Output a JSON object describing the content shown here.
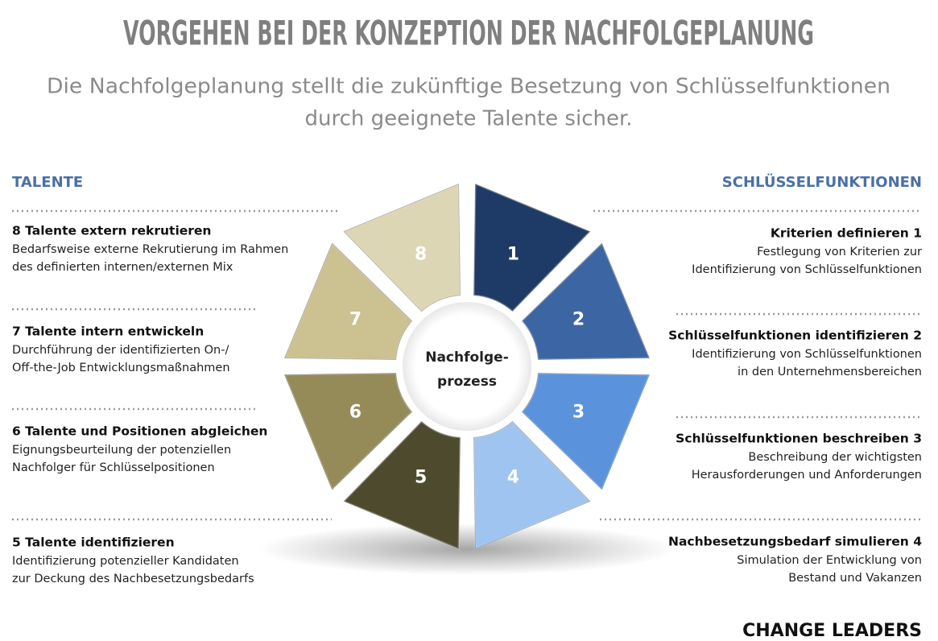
{
  "header": {
    "title": "VORGEHEN BEI DER KONZEPTION DER NACHFOLGEPLANUNG",
    "subtitle_lines": [
      "Die Nachfolgeplanung stellt die zukünftige Besetzung von Schlüsselfunktionen",
      "durch geeignete Talente sicher."
    ]
  },
  "left": {
    "heading": "TALENTE",
    "items": [
      {
        "title": "8 Talente extern rekrutieren",
        "lines": [
          "Bedarfsweise externe Rekrutierung im Rahmen",
          "des definierten internen/externen Mix"
        ]
      },
      {
        "title": "7  Talente intern entwickeln",
        "lines": [
          "Durchführung der identifizierten On-/",
          "Off-the-Job Entwicklungsmaßnahmen"
        ]
      },
      {
        "title": "6  Talente und Positionen abgleichen",
        "lines": [
          "Eignungsbeurteilung der potenziellen",
          "Nachfolger für Schlüsselpositionen"
        ]
      },
      {
        "title": "5  Talente identifizieren",
        "lines": [
          "Identifizierung potenzieller Kandidaten",
          "zur Deckung des Nachbesetzungsbedarfs"
        ]
      }
    ]
  },
  "right": {
    "heading": "SCHLÜSSELFUNKTIONEN",
    "items": [
      {
        "title": "Kriterien definieren  1",
        "lines": [
          "Festlegung von Kriterien zur",
          "Identifizierung von Schlüsselfunktionen"
        ]
      },
      {
        "title": "Schlüsselfunktionen identifizieren 2",
        "lines": [
          "Identifizierung von Schlüsselfunktionen",
          "in den Unternehmensbereichen"
        ]
      },
      {
        "title": "Schlüsselfunktionen beschreiben 3",
        "lines": [
          "Beschreibung der wichtigsten",
          "Herausforderungen und Anforderungen"
        ]
      },
      {
        "title": "Nachbesetzungsbedarf simulieren 4",
        "lines": [
          "Simulation der Entwicklung von",
          "Bestand und Vakanzen"
        ]
      }
    ]
  },
  "wheel": {
    "center_lines": [
      "Nachfolge-",
      "prozess"
    ],
    "segments": [
      {
        "label": "1",
        "color": "#1e3a66"
      },
      {
        "label": "2",
        "color": "#3b65a3"
      },
      {
        "label": "3",
        "color": "#5a93dc"
      },
      {
        "label": "4",
        "color": "#9ec4ef"
      },
      {
        "label": "5",
        "color": "#4d4a2d"
      },
      {
        "label": "6",
        "color": "#958b59"
      },
      {
        "label": "7",
        "color": "#cbc191"
      },
      {
        "label": "8",
        "color": "#ddd6b4"
      }
    ]
  },
  "footer": {
    "logo": "CHANGE LEADERS"
  }
}
